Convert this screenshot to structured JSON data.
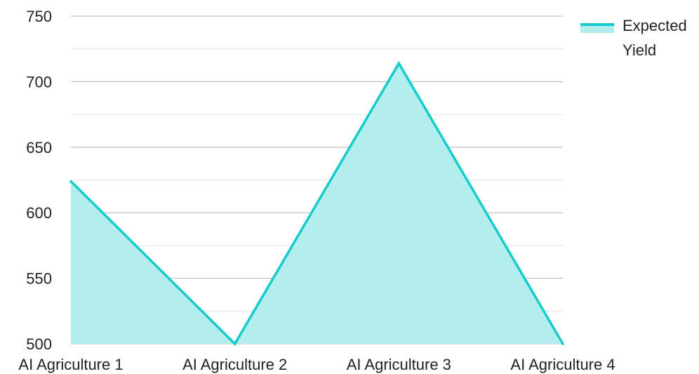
{
  "chart_data": {
    "type": "area",
    "categories": [
      "AI Agriculture 1",
      "AI Agriculture 2",
      "AI Agriculture 3",
      "AI Agriculture 4"
    ],
    "series": [
      {
        "name": "Expected Yield",
        "legend_lines": [
          "Expected",
          "Yield"
        ],
        "values": [
          624,
          500,
          714,
          500
        ],
        "color": "#17CBCB",
        "fill": "#B3EEEE"
      }
    ],
    "ylim": [
      500,
      750
    ],
    "yticks": [
      "500",
      "550",
      "600",
      "650",
      "700",
      "750"
    ],
    "ytick_values": [
      500,
      550,
      600,
      650,
      700,
      750
    ],
    "grid": true,
    "legend_position": "top-right"
  }
}
